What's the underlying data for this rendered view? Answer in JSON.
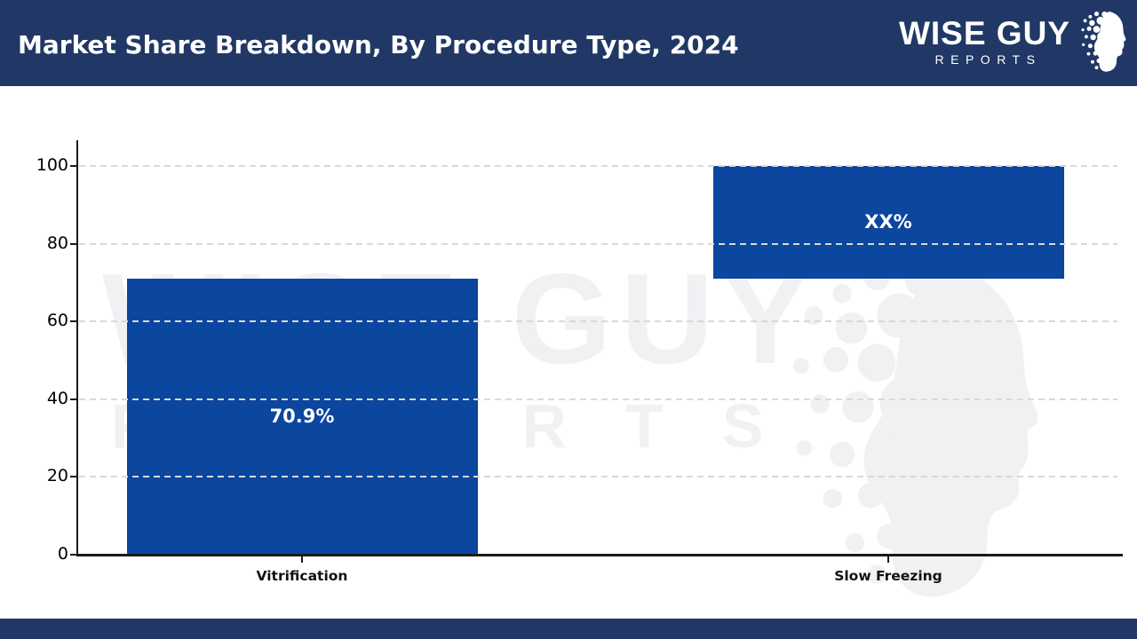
{
  "header": {
    "title": "Market Share Breakdown, By Procedure Type, 2024",
    "logo": {
      "brand_top": "WISE GUY",
      "brand_bottom": "REPORTS"
    }
  },
  "chart_data": {
    "type": "bar",
    "title": "Market Share Breakdown, By Procedure Type, 2024",
    "categories": [
      "Vitrification",
      "Slow Freezing"
    ],
    "bars": [
      {
        "category": "Vitrification",
        "from": 0,
        "to": 70.9,
        "label": "70.9%"
      },
      {
        "category": "Slow Freezing",
        "from": 70.9,
        "to": 100,
        "label": "XX%"
      }
    ],
    "xlabel": "",
    "ylabel": "",
    "ylim": [
      0,
      100
    ],
    "yticks": [
      0,
      20,
      40,
      60,
      80,
      100
    ],
    "grid": "horizontal-dashed",
    "legend": "none",
    "bar_color": "#0b469f",
    "bar_label_color": "#ffffff"
  },
  "watermark": {
    "text_large": "WISE GUY",
    "text_small": "REPORTS"
  },
  "icons": {
    "logo_face": "wiseguy-face-icon",
    "watermark_face": "watermark-face-icon"
  },
  "colors": {
    "header_bg": "#213866",
    "footer_bg": "#213866",
    "chart_bg": "#ffffff",
    "grid": "#d9d9d9",
    "axis": "#1a1a1a",
    "watermark": "#f1f1f4"
  }
}
